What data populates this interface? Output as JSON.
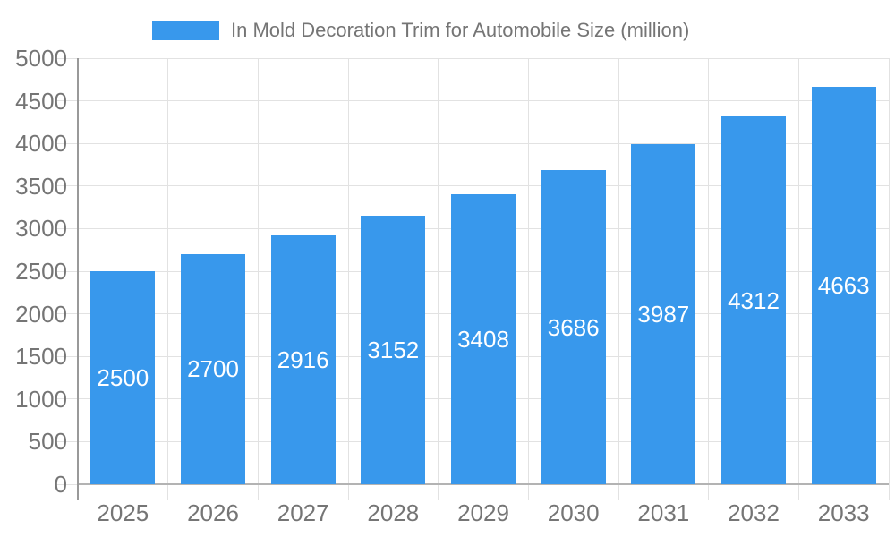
{
  "chart_data": {
    "type": "bar",
    "title": "In Mold Decoration Trim for Automobile Size (million)",
    "categories": [
      "2025",
      "2026",
      "2027",
      "2028",
      "2029",
      "2030",
      "2031",
      "2032",
      "2033"
    ],
    "values": [
      2500,
      2700,
      2916,
      3152,
      3408,
      3686,
      3987,
      4312,
      4663
    ],
    "bar_labels": [
      "2500",
      "2700",
      "2916",
      "3152",
      "3408",
      "3686",
      "3987",
      "4312",
      "4663"
    ],
    "xlabel": "",
    "ylabel": "",
    "ylim": [
      0,
      5000
    ],
    "yticks": [
      0,
      500,
      1000,
      1500,
      2000,
      2500,
      3000,
      3500,
      4000,
      4500,
      5000
    ],
    "grid": true,
    "legend_position": "top-center"
  },
  "colors": {
    "bar": "#3898EC",
    "grid": "#E2E2E2",
    "y_axis_line": "#999999",
    "x_axis_line": "#B3B3B3",
    "tick_label": "#757575",
    "title": "#757575",
    "bar_value_label": "#FFFFFF",
    "background": "#FFFFFF"
  }
}
